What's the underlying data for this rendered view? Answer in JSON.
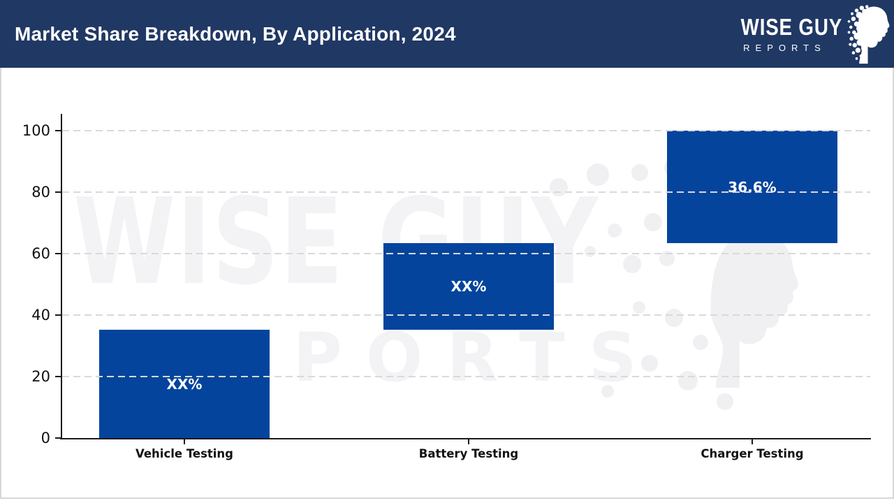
{
  "header": {
    "title": "Market Share Breakdown, By Application, 2024",
    "bg_color": "#203864",
    "logo": {
      "wordmark": "WISE GUY",
      "subtext": "REPORTS"
    }
  },
  "watermark": {
    "wordmark": "WISE GUY",
    "subtext": "REPORTS"
  },
  "chart_data": {
    "type": "bar",
    "subtype": "floating-waterfall",
    "title": "Market Share Breakdown, By Application, 2024",
    "categories": [
      "Vehicle Testing",
      "Battery Testing",
      "Charger Testing"
    ],
    "segments": [
      {
        "category": "Vehicle Testing",
        "start": 0,
        "end": 35.2,
        "label": "XX%"
      },
      {
        "category": "Battery Testing",
        "start": 35.2,
        "end": 63.4,
        "label": "XX%"
      },
      {
        "category": "Charger Testing",
        "start": 63.4,
        "end": 100,
        "label": "36.6%"
      }
    ],
    "yticks": [
      0,
      20,
      40,
      60,
      80,
      100
    ],
    "ylim": [
      0,
      105
    ],
    "xlabel": "",
    "ylabel": "",
    "legend": "none",
    "grid": "dashed-horizontal-above-bars",
    "bar_color": "#04449c",
    "bar_label_color": "#ffffff",
    "grid_color": "#d9d9d9",
    "axis_color": "#1a1a1a"
  }
}
